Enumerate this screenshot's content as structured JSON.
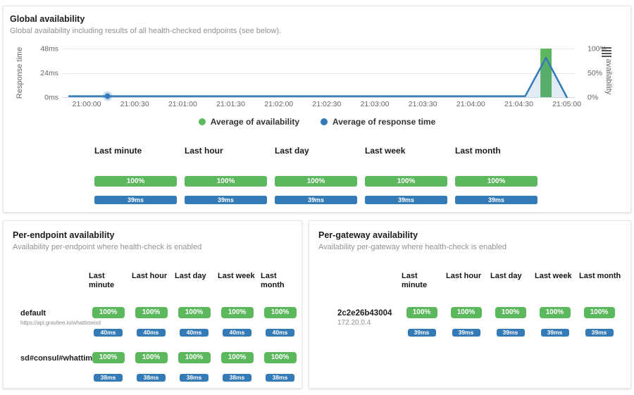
{
  "colors": {
    "green": "#5cb85c",
    "blue": "#337ab7",
    "area_fill": "rgba(51,122,183,0.15)"
  },
  "global": {
    "title": "Global availability",
    "subtitle": "Global availability including results of all health-checked endpoints (see below).",
    "stats": [
      {
        "label": "Last minute",
        "availability": "100%",
        "response_time": "39ms"
      },
      {
        "label": "Last hour",
        "availability": "100%",
        "response_time": "39ms"
      },
      {
        "label": "Last day",
        "availability": "100%",
        "response_time": "39ms"
      },
      {
        "label": "Last week",
        "availability": "100%",
        "response_time": "39ms"
      },
      {
        "label": "Last month",
        "availability": "100%",
        "response_time": "39ms"
      }
    ]
  },
  "chart_data": {
    "type": "line+column",
    "title": "",
    "x_ticks": [
      "21:00:00",
      "21:00:30",
      "21:01:00",
      "21:01:30",
      "21:02:00",
      "21:02:30",
      "21:03:00",
      "21:03:30",
      "21:04:00",
      "21:04:30",
      "21:05:00"
    ],
    "x_tick_seconds": [
      0,
      30,
      60,
      90,
      120,
      150,
      180,
      210,
      240,
      270,
      300
    ],
    "x_range_seconds": [
      -15,
      305
    ],
    "left_axis": {
      "title": "Response time",
      "max": 48,
      "ticks": [
        {
          "label": "0ms",
          "value": 0
        },
        {
          "label": "24ms",
          "value": 24
        },
        {
          "label": "48ms",
          "value": 48
        }
      ]
    },
    "right_axis": {
      "title": "availability",
      "max": 100,
      "ticks": [
        {
          "label": "0%",
          "value": 0
        },
        {
          "label": "50%",
          "value": 50
        },
        {
          "label": "100%",
          "value": 100
        }
      ]
    },
    "legend": [
      {
        "label": "Average of availability",
        "color": "#5cb85c"
      },
      {
        "label": "Average of response time",
        "color": "#337ab7"
      }
    ],
    "series": [
      {
        "name": "Average of availability",
        "type": "column",
        "axis": "right",
        "color": "#5cb85c",
        "bar_width_seconds": 7,
        "points": [
          {
            "x": 287,
            "y": 100
          }
        ]
      },
      {
        "name": "Average of response time",
        "type": "area-line",
        "axis": "left",
        "color": "#337ab7",
        "fill": "rgba(51,122,183,0.15)",
        "points": [
          [
            -11,
            1
          ],
          [
            274,
            1
          ],
          [
            287,
            39
          ],
          [
            300,
            0
          ]
        ],
        "marker": [
          13,
          1
        ]
      }
    ],
    "grid": true,
    "legend_position": "bottom-center"
  },
  "per_endpoint": {
    "title": "Per-endpoint availability",
    "subtitle": "Availability per-endpoint where health-check is enabled",
    "columns": [
      "Last minute",
      "Last hour",
      "Last day",
      "Last week",
      "Last month"
    ],
    "rows": [
      {
        "name": "default",
        "detail": "https://api.gravitee.io/whattimeisit",
        "availability": [
          "100%",
          "100%",
          "100%",
          "100%",
          "100%"
        ],
        "response_times": [
          "40ms",
          "40ms",
          "40ms",
          "40ms",
          "40ms"
        ]
      },
      {
        "name": "sd#consul#whattimeisit",
        "detail": "",
        "availability": [
          "100%",
          "100%",
          "100%",
          "100%",
          "100%"
        ],
        "response_times": [
          "38ms",
          "38ms",
          "38ms",
          "38ms",
          "38ms"
        ]
      }
    ]
  },
  "per_gateway": {
    "title": "Per-gateway availability",
    "subtitle": "Availability per-gateway where health-check is enabled",
    "columns": [
      "Last minute",
      "Last hour",
      "Last day",
      "Last week",
      "Last month"
    ],
    "rows": [
      {
        "name": "2c2e26b43004",
        "detail": "172.20.0.4",
        "availability": [
          "100%",
          "100%",
          "100%",
          "100%",
          "100%"
        ],
        "response_times": [
          "39ms",
          "39ms",
          "39ms",
          "39ms",
          "39ms"
        ]
      }
    ]
  }
}
